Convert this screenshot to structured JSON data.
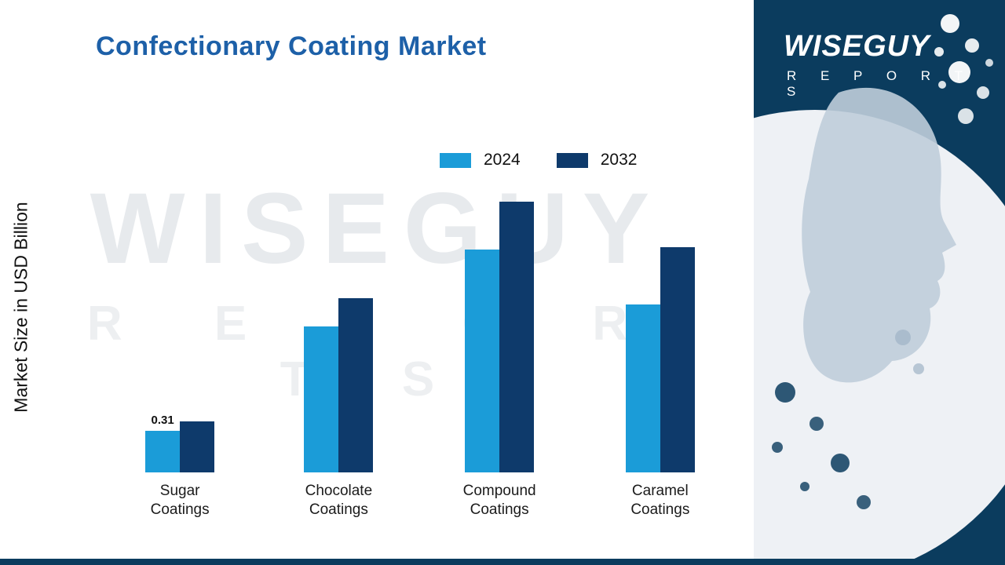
{
  "header": {
    "title": "Confectionary Coating Market"
  },
  "y_axis": {
    "label": "Market Size in USD Billion"
  },
  "legend": {
    "items": [
      {
        "label": "2024",
        "color": "#1b9cd8"
      },
      {
        "label": "2032",
        "color": "#0e3a6b"
      }
    ]
  },
  "watermark": {
    "line1": "WISEGUY",
    "line2": "R E P O R T S"
  },
  "brand": {
    "line1": "WISEGUY",
    "line2": "R E P O R T S"
  },
  "colors": {
    "title": "#1d60a8",
    "series_2024": "#1b9cd8",
    "series_2032": "#0e3a6b",
    "panel": "#0b3c5e",
    "watermark_text": "#e7eaed"
  },
  "chart_data": {
    "type": "bar",
    "title": "Confectionary Coating Market",
    "xlabel": "",
    "ylabel": "Market Size in USD Billion",
    "categories": [
      "Sugar Coatings",
      "Chocolate Coatings",
      "Compound Coatings",
      "Caramel Coatings"
    ],
    "series": [
      {
        "name": "2024",
        "color": "#1b9cd8",
        "values": [
          0.31,
          1.09,
          1.66,
          1.25
        ]
      },
      {
        "name": "2032",
        "color": "#0e3a6b",
        "values": [
          0.38,
          1.3,
          2.02,
          1.68
        ]
      }
    ],
    "value_labels": [
      {
        "series": "2024",
        "category": "Sugar Coatings",
        "text": "0.31"
      }
    ],
    "ylim": [
      0,
      2.2
    ],
    "grid": false,
    "legend_position": "top-center"
  }
}
